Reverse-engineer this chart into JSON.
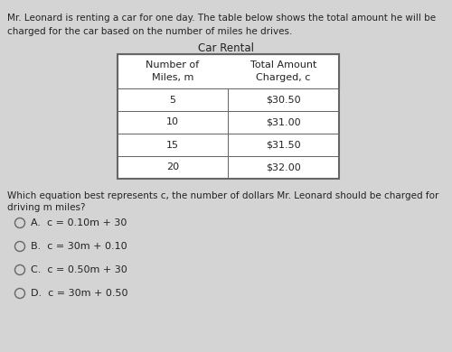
{
  "background_color": "#d4d4d4",
  "intro_text_line1": "Mr. Leonard is renting a car for one day. The table below shows the total amount he will be",
  "intro_text_line2": "charged for the car based on the number of miles he drives.",
  "table_title": "Car Rental",
  "col_header1": "Number of\nMiles, m",
  "col_header2": "Total Amount\nCharged, c",
  "miles": [
    "5",
    "10",
    "15",
    "20"
  ],
  "charges": [
    "$30.50",
    "$31.00",
    "$31.50",
    "$32.00"
  ],
  "question_line1": "Which equation best represents c, the number of dollars Mr. Leonard should be charged for",
  "question_line2": "driving m miles?",
  "option_labels": [
    "A.",
    "B.",
    "C.",
    "D."
  ],
  "option_texts": [
    "c = 0.10m + 30",
    "c = 30m + 0.10",
    "c = 0.50m + 30",
    "c = 30m + 0.50"
  ],
  "text_color": "#222222",
  "table_border_color": "#666666",
  "cell_bg": "#ffffff",
  "font_size_intro": 7.5,
  "font_size_table_title": 8.5,
  "font_size_table": 8.0,
  "font_size_question": 7.5,
  "font_size_options": 8.0
}
